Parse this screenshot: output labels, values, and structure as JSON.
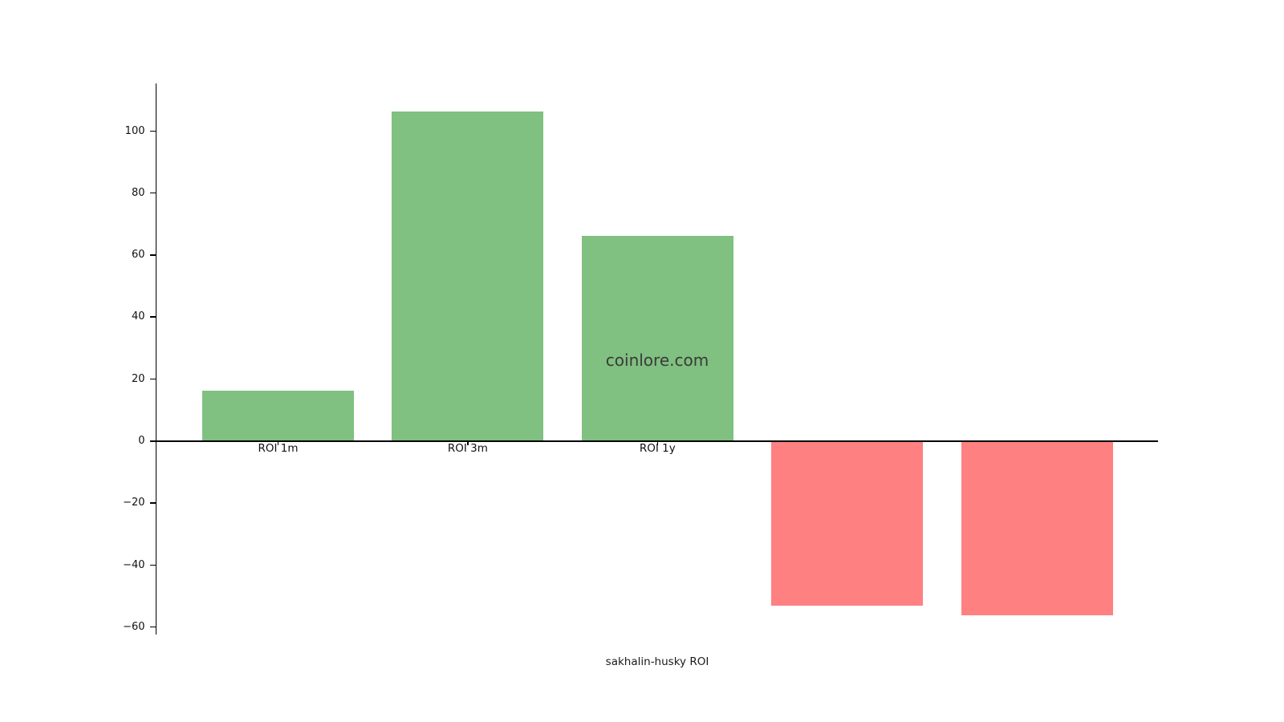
{
  "watermark": {
    "text": "coinlore.com",
    "color": "#3a3a3a"
  },
  "chart_data": {
    "type": "bar",
    "title": "sakhalin-husky ROI",
    "categories": [
      "ROI 1m",
      "ROI 3m",
      "ROI 1y",
      "",
      ""
    ],
    "values": [
      16,
      106,
      66,
      -53,
      -56
    ],
    "bar_colors": [
      "#80c080",
      "#80c080",
      "#80c080",
      "#ff8080",
      "#ff8080"
    ],
    "positive_color": "#80c080",
    "negative_color": "#ff8080",
    "axis_color": "#000000",
    "tick_label_color": "#111111",
    "yticks": [
      100,
      80,
      60,
      40,
      20,
      0,
      -20,
      -40,
      -60
    ],
    "ylim": [
      -64,
      114
    ],
    "xlabel": "",
    "ylabel": "",
    "grid": false,
    "legend": null,
    "background": "#ffffff"
  }
}
